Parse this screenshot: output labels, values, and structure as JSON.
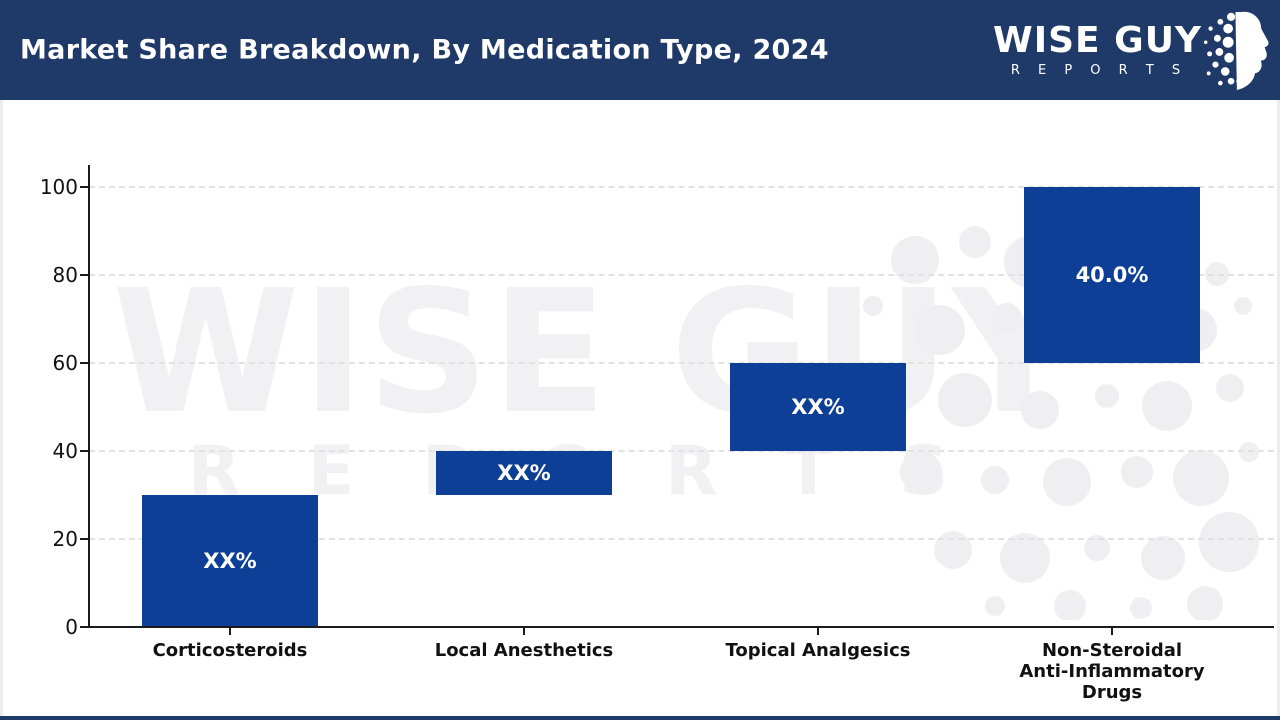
{
  "header": {
    "title": "Market Share Breakdown, By Medication Type, 2024",
    "bg_color": "#1f3a68",
    "brand": {
      "line1": "WISE GUY",
      "line2": "R E P O R T S"
    }
  },
  "watermark": {
    "line1": "WISE GUY",
    "line2": "R E P O R T S"
  },
  "chart_data": {
    "type": "bar",
    "subtype": "floating-waterfall",
    "title": "Market Share Breakdown, By Medication Type, 2024",
    "xlabel": "",
    "ylabel": "",
    "ylim": [
      0,
      100
    ],
    "yticks": [
      0,
      20,
      40,
      60,
      80,
      100
    ],
    "grid": "horizontal-dashed",
    "legend": "none",
    "bar_color": "#0d3f96",
    "label_color": "#ffffff",
    "categories": [
      "Corticosteroids",
      "Local Anesthetics",
      "Topical Analgesics",
      "Non-Steroidal Anti-Inflammatory Drugs"
    ],
    "categories_display": [
      [
        "Corticosteroids"
      ],
      [
        "Local Anesthetics"
      ],
      [
        "Topical Analgesics"
      ],
      [
        "Non-Steroidal",
        "Anti-Inflammatory",
        "Drugs"
      ]
    ],
    "series": [
      {
        "name": "Market Share",
        "segments": [
          {
            "category": "Corticosteroids",
            "start": 0,
            "end": 30,
            "label": "XX%"
          },
          {
            "category": "Local Anesthetics",
            "start": 30,
            "end": 40,
            "label": "XX%"
          },
          {
            "category": "Topical Analgesics",
            "start": 40,
            "end": 60,
            "label": "XX%"
          },
          {
            "category": "Non-Steroidal Anti-Inflammatory Drugs",
            "start": 60,
            "end": 100,
            "label": "40.0%"
          }
        ]
      }
    ]
  }
}
